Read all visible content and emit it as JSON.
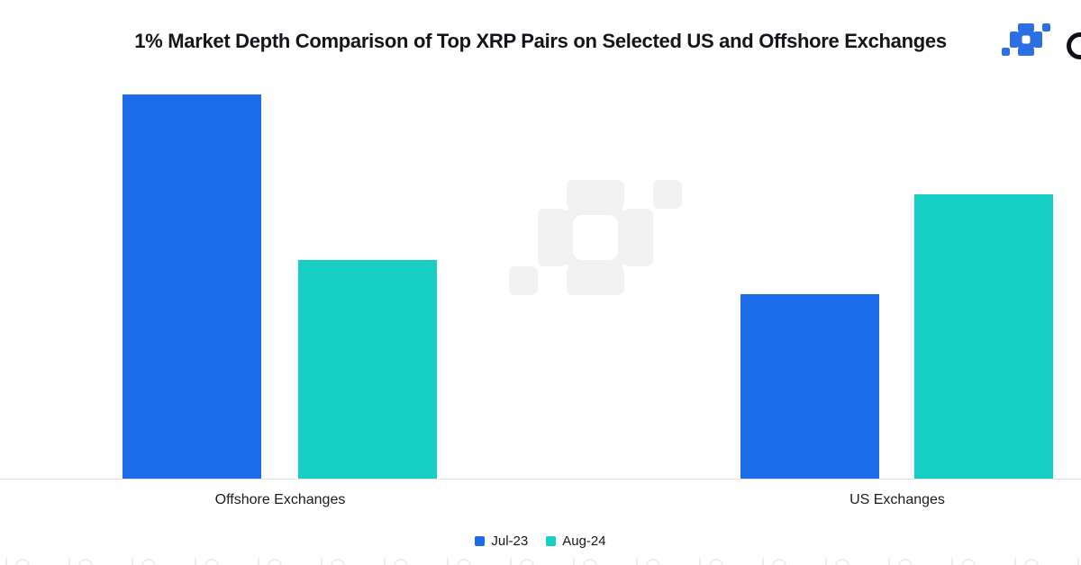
{
  "page": {
    "background_color": "#ffffff"
  },
  "header": {
    "title": "1% Market Depth Comparison of Top XRP Pairs on Selected US and Offshore Exchanges",
    "logo": {
      "mark": "kaiko-pixel-mark",
      "mark_color": "#2b6fe3",
      "partial_letter": "round letter cut off at right edge",
      "letter_color": "#10101a"
    }
  },
  "chart_data": {
    "type": "bar",
    "title": "1% Market Depth Comparison of Top XRP Pairs on Selected US and Offshore Exchanges",
    "categories": [
      "Offshore Exchanges",
      "US Exchanges"
    ],
    "series": [
      {
        "name": "Jul-23",
        "color": "#1c6be9",
        "values": [
          100,
          48
        ]
      },
      {
        "name": "Aug-24",
        "color": "#16cec3",
        "values": [
          57,
          74
        ]
      }
    ],
    "ymax": 100,
    "ylim": [
      0,
      100
    ],
    "xlabel": "",
    "ylabel": "",
    "y_axis_visible": false,
    "grid": false,
    "legend_position": "bottom-center",
    "note": "No numeric y-axis is shown; values are relative bar heights as a percent of the tallest bar (Jul-23 Offshore = 100)."
  },
  "legend": {
    "items": [
      {
        "label": "Jul-23",
        "color": "#1c6be9"
      },
      {
        "label": "Aug-24",
        "color": "#16cec3"
      }
    ]
  },
  "decor": {
    "watermark_color": "#f1f1f1",
    "axis_line_color": "#e0e0e0",
    "bottom_strip_color": "#ededed"
  }
}
